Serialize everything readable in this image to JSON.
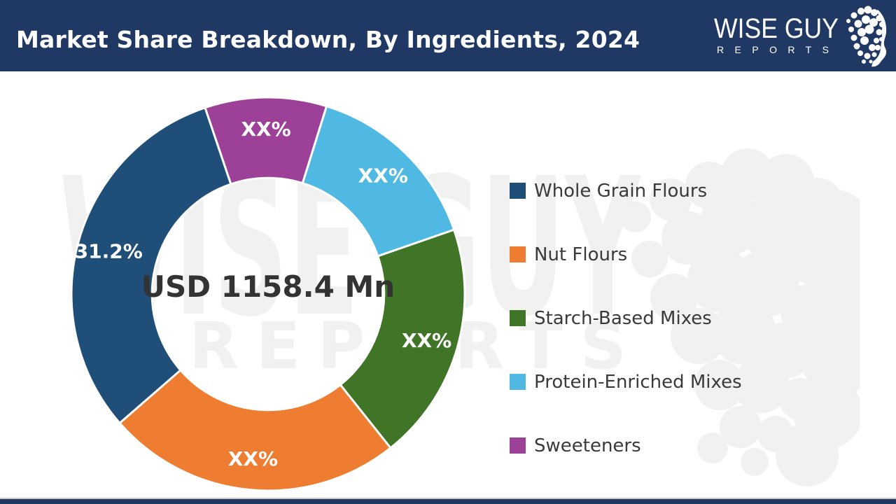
{
  "header": {
    "title": "Market Share Breakdown, By Ingredients, 2024",
    "logo_line1": "WISE GUY",
    "logo_line2": "REPORTS"
  },
  "watermark": {
    "line1": "WISE GUY",
    "line2": "REPORTS"
  },
  "chart_data": {
    "type": "pie",
    "subtype": "donut",
    "title": "Market Share Breakdown, By Ingredients, 2024",
    "center_label": "USD 1158.4 Mn",
    "units": "percent market share",
    "start_angle_cw_from_top_deg": -18.7,
    "inner_radius_ratio": 0.59,
    "legend_position": "right",
    "clockwise_order_from_top": [
      "Sweeteners",
      "Protein-Enriched Mixes",
      "Starch-Based Mixes",
      "Nut Flours",
      "Whole Grain Flours"
    ],
    "series": [
      {
        "name": "Whole Grain Flours",
        "value": 31.2,
        "display_label": "31.2%",
        "color": "#1f4e78"
      },
      {
        "name": "Nut Flours",
        "value": 24.3,
        "display_label": "XX%",
        "color": "#ee7d31"
      },
      {
        "name": "Starch-Based Mixes",
        "value": 19.6,
        "display_label": "XX%",
        "color": "#407426"
      },
      {
        "name": "Protein-Enriched Mixes",
        "value": 14.9,
        "display_label": "XX%",
        "color": "#4fb8e3"
      },
      {
        "name": "Sweeteners",
        "value": 10.0,
        "display_label": "XX%",
        "color": "#9c4197"
      }
    ]
  },
  "colors": {
    "header_bg": "#1f3864",
    "footer_bg": "#1f3864",
    "center_text": "#333333",
    "legend_text": "#3a3a3a",
    "watermark": "#f1f1f1",
    "slice_border": "#ffffff"
  }
}
